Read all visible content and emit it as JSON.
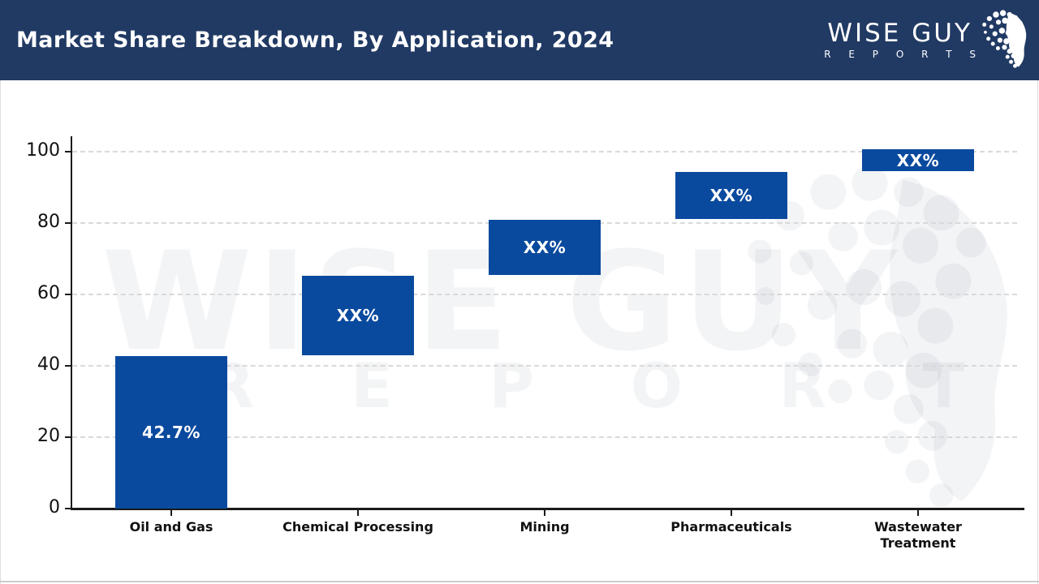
{
  "header": {
    "title": "Market Share Breakdown, By Application, 2024",
    "logo": {
      "line1": "WISE GUY",
      "line2": "R E P O R T S"
    }
  },
  "watermark": {
    "line1": "WISE GUY",
    "line2": "R E P O R T S"
  },
  "colors": {
    "header_bg": "#213a64",
    "bar": "#0a4a9e",
    "axis": "#1a1a1a",
    "grid": "#d9d9d9",
    "bar_label": "#ffffff",
    "tick_text": "#111111"
  },
  "chart_data": {
    "type": "bar",
    "subtype": "waterfall",
    "title": "Market Share Breakdown, By Application, 2024",
    "categories": [
      "Oil and Gas",
      "Chemical Processing",
      "Mining",
      "Pharmaceuticals",
      "Wastewater Treatment"
    ],
    "segments": [
      {
        "category": "Oil and Gas",
        "start": 0,
        "end": 42.7,
        "value": 42.7,
        "label": "42.7%"
      },
      {
        "category": "Chemical Processing",
        "start": 42.9,
        "end": 65.2,
        "value": 22.3,
        "label": "XX%"
      },
      {
        "category": "Mining",
        "start": 65.4,
        "end": 80.9,
        "value": 15.5,
        "label": "XX%"
      },
      {
        "category": "Pharmaceuticals",
        "start": 81.1,
        "end": 94.3,
        "value": 13.2,
        "label": "XX%"
      },
      {
        "category": "Wastewater Treatment",
        "start": 94.5,
        "end": 100.6,
        "value": 6.1,
        "label": "XX%"
      }
    ],
    "y_ticks": [
      0,
      20,
      40,
      60,
      80,
      100
    ],
    "ylim": [
      0,
      104
    ],
    "ylabel": "",
    "xlabel": "",
    "grid": "horizontal-dashed",
    "legend": "none"
  }
}
